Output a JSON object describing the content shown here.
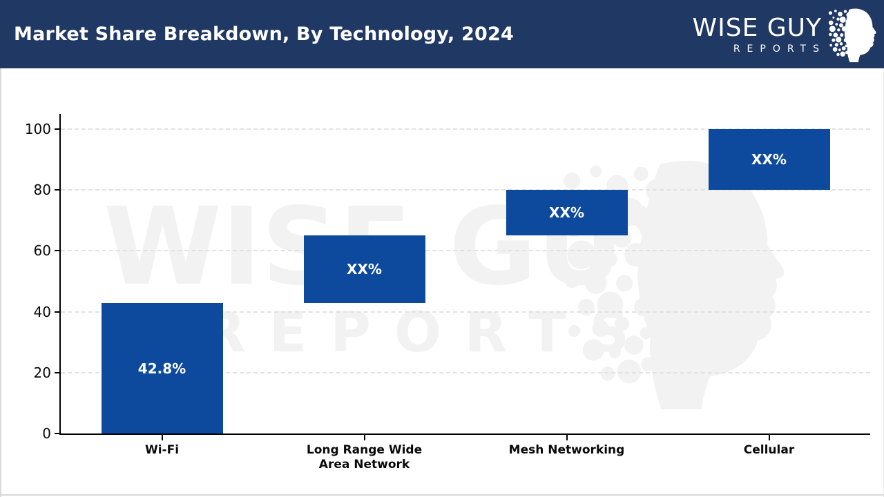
{
  "header": {
    "title": "Market Share Breakdown, By Technology, 2024",
    "logo": {
      "line1": "WISE GUY",
      "line2": "REPORTS"
    }
  },
  "watermark": {
    "line1": "WISE GUY",
    "line2": "REPORTS"
  },
  "colors": {
    "header_bg": "#203864",
    "bar": "#0d4a9e",
    "grid": "#e2e2e2",
    "watermark": "#f2f2f2",
    "axis": "#000000",
    "edge": "#d9d9d9",
    "bar_label": "#ffffff"
  },
  "chart_data": {
    "type": "bar",
    "subtype": "waterfall",
    "title": "Market Share Breakdown, By Technology, 2024",
    "categories": [
      "Wi-Fi",
      "Long Range Wide Area Network",
      "Mesh Networking",
      "Cellular"
    ],
    "category_display": [
      [
        "Wi-Fi"
      ],
      [
        "Long Range Wide",
        "Area Network"
      ],
      [
        "Mesh Networking"
      ],
      [
        "Cellular"
      ]
    ],
    "segments": [
      {
        "category": "Wi-Fi",
        "start": 0,
        "end": 42.8,
        "label": "42.8%"
      },
      {
        "category": "Long Range Wide Area Network",
        "start": 42.8,
        "end": 65,
        "label": "XX%"
      },
      {
        "category": "Mesh Networking",
        "start": 65,
        "end": 80,
        "label": "XX%"
      },
      {
        "category": "Cellular",
        "start": 80,
        "end": 100,
        "label": "XX%"
      }
    ],
    "xlabel": "",
    "ylabel": "",
    "ylim": [
      0,
      100
    ],
    "yticks": [
      0,
      20,
      40,
      60,
      80,
      100
    ],
    "grid": "horizontal-dashed",
    "legend": "none",
    "bar_color": "#0d4a9e",
    "value_labels_hidden_as": "XX%"
  }
}
